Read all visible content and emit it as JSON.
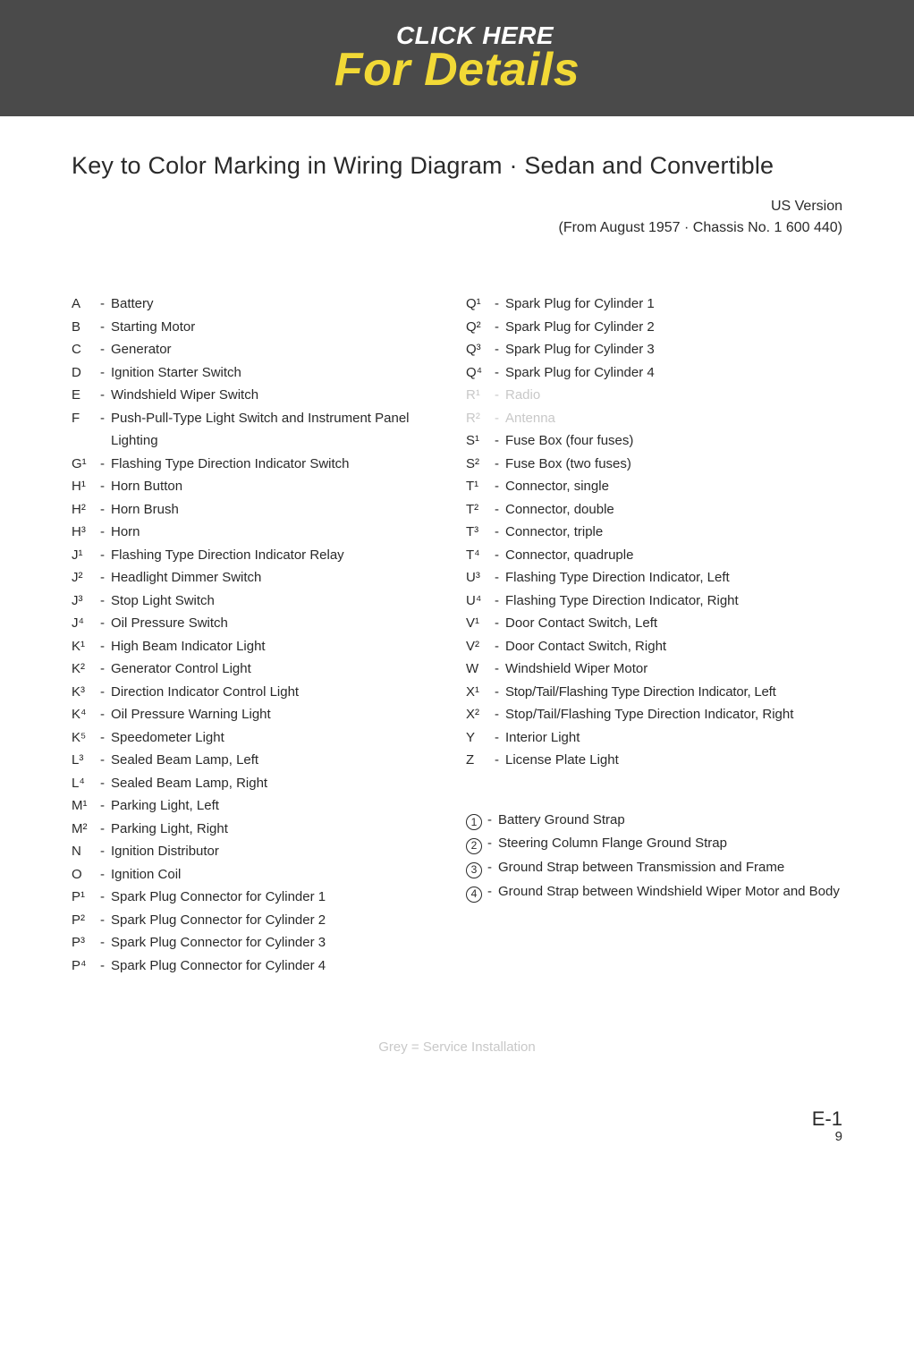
{
  "banner": {
    "line1": "CLICK HERE",
    "line2": "For Details"
  },
  "title": "Key to Color Marking in Wiring Diagram · Sedan and Convertible",
  "subhead": {
    "line1": "US Version",
    "line2": "(From August 1957 · Chassis No. 1 600 440)"
  },
  "col1": [
    {
      "code": "A",
      "label": "Battery"
    },
    {
      "code": "B",
      "label": "Starting Motor"
    },
    {
      "code": "C",
      "label": "Generator"
    },
    {
      "code": "D",
      "label": "Ignition Starter Switch"
    },
    {
      "code": "E",
      "label": "Windshield Wiper Switch"
    },
    {
      "code": "F",
      "label": "Push-Pull-Type Light Switch and Instrument Panel Lighting"
    },
    {
      "code": "G¹",
      "label": "Flashing Type Direction Indicator Switch"
    },
    {
      "code": "H¹",
      "label": "Horn Button"
    },
    {
      "code": "H²",
      "label": "Horn Brush"
    },
    {
      "code": "H³",
      "label": "Horn"
    },
    {
      "code": "J¹",
      "label": "Flashing Type Direction Indicator Relay"
    },
    {
      "code": "J²",
      "label": "Headlight Dimmer Switch"
    },
    {
      "code": "J³",
      "label": "Stop Light Switch"
    },
    {
      "code": "J⁴",
      "label": "Oil Pressure Switch"
    },
    {
      "code": "K¹",
      "label": "High Beam Indicator Light"
    },
    {
      "code": "K²",
      "label": "Generator Control Light"
    },
    {
      "code": "K³",
      "label": "Direction Indicator Control Light"
    },
    {
      "code": "K⁴",
      "label": "Oil Pressure Warning Light"
    },
    {
      "code": "K⁵",
      "label": "Speedometer Light"
    },
    {
      "code": "L³",
      "label": "Sealed Beam Lamp, Left"
    },
    {
      "code": "L⁴",
      "label": "Sealed Beam Lamp, Right"
    },
    {
      "code": "M¹",
      "label": "Parking Light, Left"
    },
    {
      "code": "M²",
      "label": "Parking Light, Right"
    },
    {
      "code": "N",
      "label": "Ignition Distributor"
    },
    {
      "code": "O",
      "label": "Ignition Coil"
    },
    {
      "code": "P¹",
      "label": "Spark Plug Connector for Cylinder 1"
    },
    {
      "code": "P²",
      "label": "Spark Plug Connector for Cylinder 2"
    },
    {
      "code": "P³",
      "label": "Spark Plug Connector for Cylinder 3"
    },
    {
      "code": "P⁴",
      "label": "Spark Plug Connector for Cylinder 4"
    }
  ],
  "col2": [
    {
      "code": "Q¹",
      "label": "Spark Plug for Cylinder 1"
    },
    {
      "code": "Q²",
      "label": "Spark Plug for Cylinder 2"
    },
    {
      "code": "Q³",
      "label": "Spark Plug for Cylinder 3"
    },
    {
      "code": "Q⁴",
      "label": "Spark Plug for Cylinder 4"
    },
    {
      "code": "R¹",
      "label": "Radio",
      "faded": true
    },
    {
      "code": "R²",
      "label": "Antenna",
      "faded": true
    },
    {
      "code": "S¹",
      "label": "Fuse Box (four fuses)"
    },
    {
      "code": "S²",
      "label": "Fuse Box (two fuses)"
    },
    {
      "code": "T¹",
      "label": "Connector, single"
    },
    {
      "code": "T²",
      "label": "Connector, double"
    },
    {
      "code": "T³",
      "label": "Connector, triple"
    },
    {
      "code": "T⁴",
      "label": "Connector, quadruple"
    },
    {
      "code": "U³",
      "label": "Flashing Type Direction Indicator, Left"
    },
    {
      "code": "U⁴",
      "label": "Flashing Type Direction Indicator, Right"
    },
    {
      "code": "V¹",
      "label": "Door Contact Switch, Left"
    },
    {
      "code": "V²",
      "label": "Door Contact Switch, Right"
    },
    {
      "code": "W",
      "label": "Windshield Wiper Motor"
    },
    {
      "code": "X¹",
      "label": "Stop/Tail/Flashing Type Direction Indicator, Left",
      "tight": true
    },
    {
      "code": "X²",
      "label": "Stop/Tail/Flashing Type Direction Indicator, Right"
    },
    {
      "code": "Y",
      "label": "Interior Light"
    },
    {
      "code": "Z",
      "label": "License Plate Light"
    }
  ],
  "numbered": [
    {
      "n": "1",
      "label": "Battery Ground Strap"
    },
    {
      "n": "2",
      "label": "Steering Column Flange Ground Strap"
    },
    {
      "n": "3",
      "label": "Ground Strap between Transmission and Frame",
      "justify": true
    },
    {
      "n": "4",
      "label": "Ground Strap between Windshield Wiper Motor and Body",
      "justify": true
    }
  ],
  "footer_note": "Grey = Service Installation",
  "page_number": {
    "main": "E-1",
    "sub": "9"
  },
  "colors": {
    "banner_bg": "#4a4a4a",
    "banner_text1": "#ffffff",
    "banner_text2": "#f2d936",
    "page_bg": "#ffffff",
    "text": "#2a2a2a",
    "faded": "#c8c8c8"
  },
  "typography": {
    "title_fontsize": 27,
    "body_fontsize": 15,
    "subhead_fontsize": 16,
    "banner_line1_fontsize": 28,
    "banner_line2_fontsize": 52,
    "font_family": "Futura / Century Gothic"
  }
}
